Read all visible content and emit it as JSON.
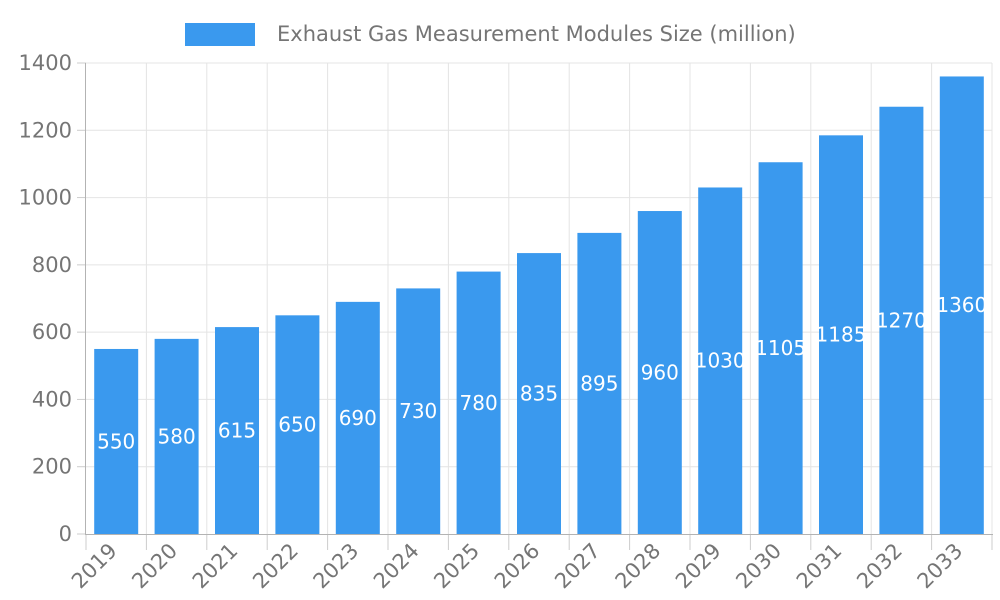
{
  "legend": {
    "swatch_color": "#3a99ee"
  },
  "chart_data": {
    "type": "bar",
    "title": "Exhaust Gas Measurement Modules Size (million)",
    "series_name": "Exhaust Gas Measurement Modules Size (million)",
    "categories": [
      "2019",
      "2020",
      "2021",
      "2022",
      "2023",
      "2024",
      "2025",
      "2026",
      "2027",
      "2028",
      "2029",
      "2030",
      "2031",
      "2032",
      "2033"
    ],
    "values": [
      550,
      580,
      615,
      650,
      690,
      730,
      780,
      835,
      895,
      960,
      1030,
      1105,
      1185,
      1270,
      1360
    ],
    "xlabel": "",
    "ylabel": "",
    "ylim": [
      0,
      1400
    ],
    "y_ticks": [
      0,
      200,
      400,
      600,
      800,
      1000,
      1200,
      1400
    ],
    "grid": true,
    "legend_position": "top",
    "x_label_rotation": -45,
    "bar_color": "#3a99ee",
    "bar_label_color": "#ffffff",
    "axis_text_color": "#757575",
    "grid_color": "#e4e4e4",
    "tick_color": "#cccccc",
    "axis_line_color": "#b3b3b3"
  }
}
